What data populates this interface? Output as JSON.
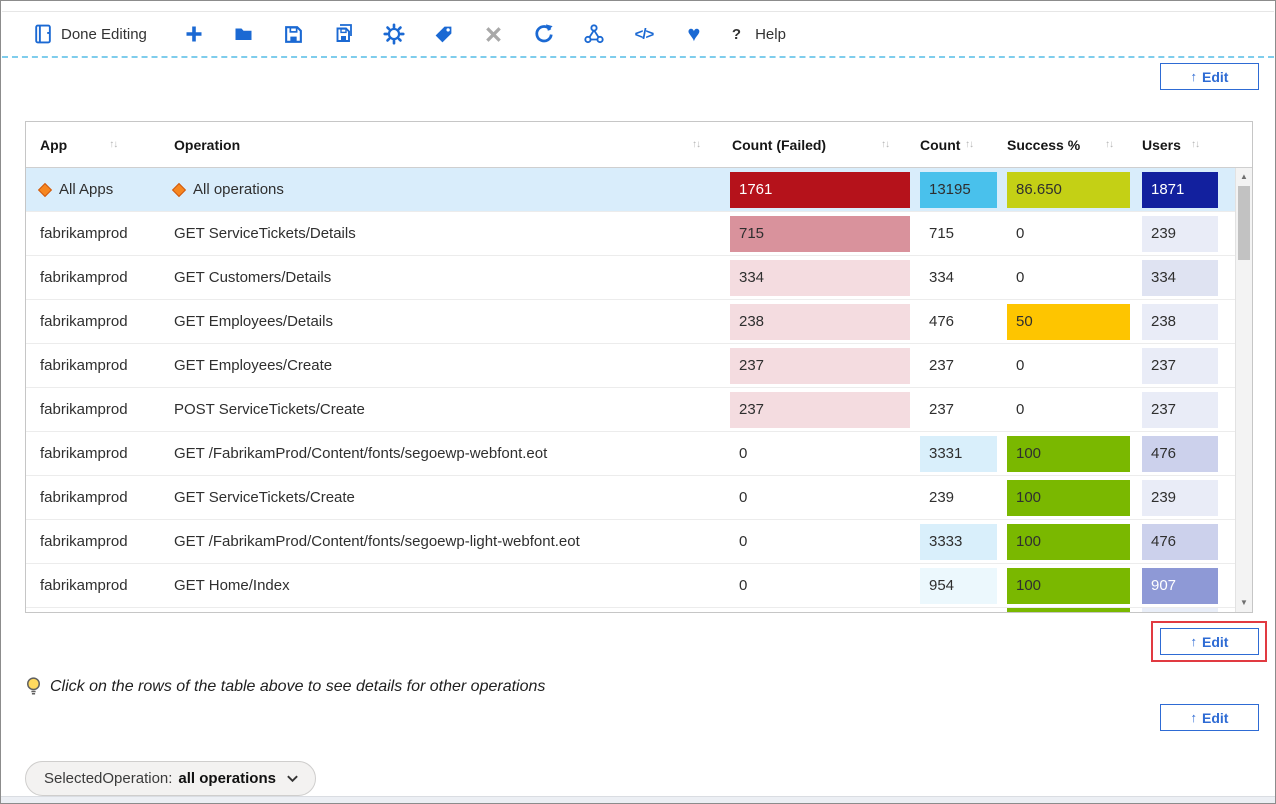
{
  "toolbar": {
    "done_editing_label": "Done Editing",
    "help_label": "Help",
    "icons": [
      "workbook-icon",
      "add-icon",
      "open-folder-icon",
      "save-icon",
      "save-all-icon",
      "settings-gear-icon",
      "tag-icon",
      "close-icon",
      "refresh-icon",
      "share-group-icon",
      "code-icon",
      "favorite-heart-icon",
      "help-question-icon"
    ]
  },
  "edit_button": {
    "arrow": "↑",
    "label": "Edit"
  },
  "table": {
    "columns": [
      {
        "key": "app",
        "label": "App",
        "sort": "↑↓"
      },
      {
        "key": "op",
        "label": "Operation",
        "sort": "↑↓"
      },
      {
        "key": "cf",
        "label": "Count (Failed)",
        "sort": "↑↓"
      },
      {
        "key": "count",
        "label": "Count",
        "sort": "↑↓"
      },
      {
        "key": "success",
        "label": "Success %",
        "sort": "↑↓"
      },
      {
        "key": "users",
        "label": "Users",
        "sort": "↑↓"
      }
    ],
    "rows": [
      {
        "app": "All Apps",
        "operation": "All operations",
        "selected": true,
        "icons": true,
        "cf": {
          "v": "1761",
          "bg": "#b5121b",
          "fg": "#ffffff"
        },
        "count": {
          "v": "13195",
          "bg": "#49c1ec"
        },
        "success": {
          "v": "86.650",
          "bg": "#c4d015"
        },
        "users": {
          "v": "1871",
          "bg": "#12209e",
          "fg": "#ffffff"
        }
      },
      {
        "app": "fabrikamprod",
        "operation": "GET ServiceTickets/Details",
        "cf": {
          "v": "715",
          "bg": "#d9929c"
        },
        "count": {
          "v": "715"
        },
        "success": {
          "v": "0"
        },
        "users": {
          "v": "239",
          "bg": "#e9ecf7"
        }
      },
      {
        "app": "fabrikamprod",
        "operation": "GET Customers/Details",
        "cf": {
          "v": "334",
          "bg": "#f4dce0"
        },
        "count": {
          "v": "334"
        },
        "success": {
          "v": "0"
        },
        "users": {
          "v": "334",
          "bg": "#dfe3f2"
        }
      },
      {
        "app": "fabrikamprod",
        "operation": "GET Employees/Details",
        "cf": {
          "v": "238",
          "bg": "#f4dce0"
        },
        "count": {
          "v": "476"
        },
        "success": {
          "v": "50",
          "bg": "#fec500"
        },
        "users": {
          "v": "238",
          "bg": "#e9ecf7"
        }
      },
      {
        "app": "fabrikamprod",
        "operation": "GET Employees/Create",
        "cf": {
          "v": "237",
          "bg": "#f4dce0"
        },
        "count": {
          "v": "237"
        },
        "success": {
          "v": "0"
        },
        "users": {
          "v": "237",
          "bg": "#e9ecf7"
        }
      },
      {
        "app": "fabrikamprod",
        "operation": "POST ServiceTickets/Create",
        "cf": {
          "v": "237",
          "bg": "#f4dce0"
        },
        "count": {
          "v": "237"
        },
        "success": {
          "v": "0"
        },
        "users": {
          "v": "237",
          "bg": "#e9ecf7"
        }
      },
      {
        "app": "fabrikamprod",
        "operation": "GET /FabrikamProd/Content/fonts/segoewp-webfont.eot",
        "cf": {
          "v": "0"
        },
        "count": {
          "v": "3331",
          "bg": "#d9effb"
        },
        "success": {
          "v": "100",
          "bg": "#7ab800"
        },
        "users": {
          "v": "476",
          "bg": "#ccd1ec"
        }
      },
      {
        "app": "fabrikamprod",
        "operation": "GET ServiceTickets/Create",
        "cf": {
          "v": "0"
        },
        "count": {
          "v": "239"
        },
        "success": {
          "v": "100",
          "bg": "#7ab800"
        },
        "users": {
          "v": "239",
          "bg": "#e9ecf7"
        }
      },
      {
        "app": "fabrikamprod",
        "operation": "GET /FabrikamProd/Content/fonts/segoewp-light-webfont.eot",
        "cf": {
          "v": "0"
        },
        "count": {
          "v": "3333",
          "bg": "#d9effb"
        },
        "success": {
          "v": "100",
          "bg": "#7ab800"
        },
        "users": {
          "v": "476",
          "bg": "#ccd1ec"
        }
      },
      {
        "app": "fabrikamprod",
        "operation": "GET Home/Index",
        "cf": {
          "v": "0"
        },
        "count": {
          "v": "954",
          "bg": "#ecf8fd"
        },
        "success": {
          "v": "100",
          "bg": "#7ab800"
        },
        "users": {
          "v": "907",
          "bg": "#8e99d6",
          "fg": "#ffffff"
        }
      }
    ],
    "partial_row": {
      "success_bg": "#7ab800",
      "users_bg": "#e9eef8"
    }
  },
  "hint": {
    "text": "Click on the rows of the table above to see details for other operations"
  },
  "parameter_pill": {
    "label": "SelectedOperation:",
    "value": "all operations"
  },
  "colors": {
    "accent_blue": "#1b69d3",
    "edit_blue": "#2e6bd4",
    "annotation_red": "#e13a41",
    "selected_row": "#d9edfb",
    "dashed_divider": "#7fcdec",
    "gray_icon": "#a8a8a8"
  }
}
